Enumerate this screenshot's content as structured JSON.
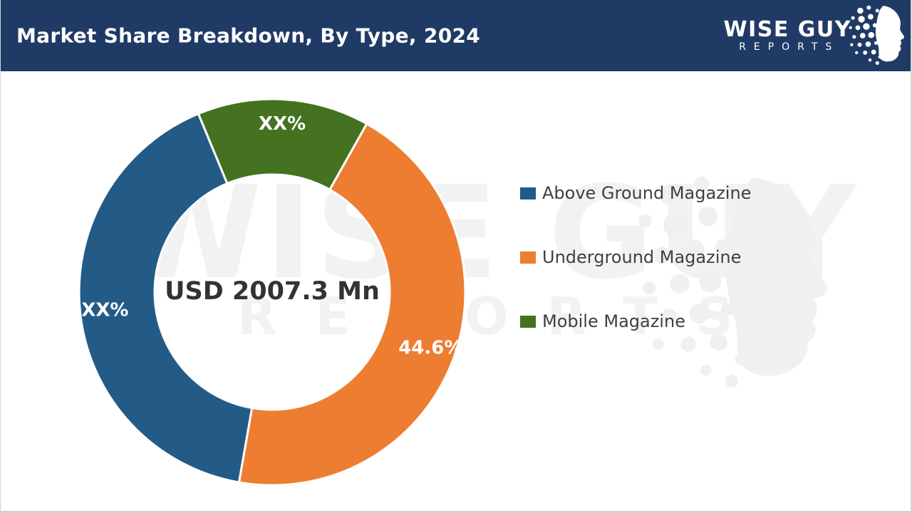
{
  "header": {
    "title": "Market Share Breakdown, By Type, 2024",
    "logo": {
      "name": "WISE GUY",
      "sub": "REPORTS"
    }
  },
  "watermark": {
    "name": "WISE GUY",
    "sub": "REPORTS"
  },
  "chart_data": {
    "type": "pie",
    "subtype": "donut",
    "title": "Market Share Breakdown, By Type, 2024",
    "center_label": "USD 2007.3 Mn",
    "start_angle_deg": -22.5,
    "direction": "clockwise",
    "legend_position": "right",
    "segments": [
      {
        "name": "Mobile Magazine",
        "display_label": "XX%",
        "share_pct": 14.4,
        "value_masked": true,
        "color": "#447220"
      },
      {
        "name": "Underground Magazine",
        "display_label": "44.6%",
        "share_pct": 44.6,
        "value_masked": false,
        "color": "#ED7D31"
      },
      {
        "name": "Above Ground Magazine",
        "display_label": "XX%",
        "share_pct": 41.0,
        "value_masked": true,
        "color": "#245B86"
      }
    ],
    "legend": [
      {
        "label": "Above Ground Magazine",
        "color": "#245B86"
      },
      {
        "label": "Underground Magazine",
        "color": "#ED7D31"
      },
      {
        "label": "Mobile Magazine",
        "color": "#447220"
      }
    ]
  },
  "colors": {
    "header_bg": "#203A66",
    "segment_label_text": "#FFFFFF",
    "center_text": "#333333",
    "legend_text": "#3F3F3F",
    "watermark": "#F2F2F2",
    "page_border": "#D6D6D6"
  }
}
